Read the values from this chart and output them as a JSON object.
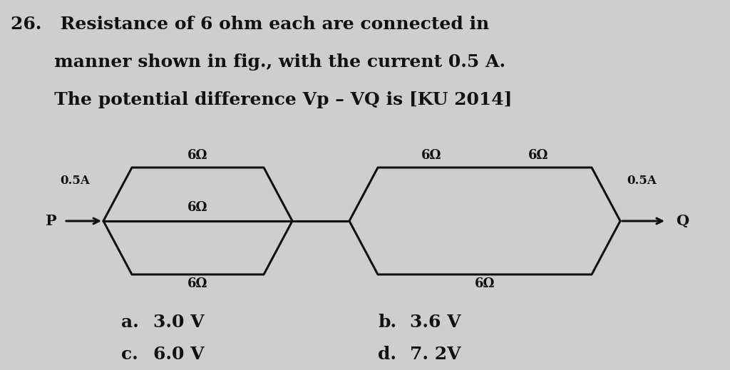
{
  "bg_color": "#cecece",
  "text_color": "#111111",
  "title_line1": "26.   Resistance of 6 ohm each are connected in",
  "title_line2": "       manner shown in fig., with the current 0.5 A.",
  "title_line3": "       The potential difference Vp – VQ is [KU 2014]",
  "answers": [
    [
      "a.",
      "3.0 V",
      "b.",
      "3.6 V"
    ],
    [
      "c.",
      "6.0 V",
      "d.",
      "7. 2V"
    ]
  ],
  "resistor_label": "6Ω",
  "P_label": "P",
  "Q_label": "Q",
  "current_label": "0.5A"
}
